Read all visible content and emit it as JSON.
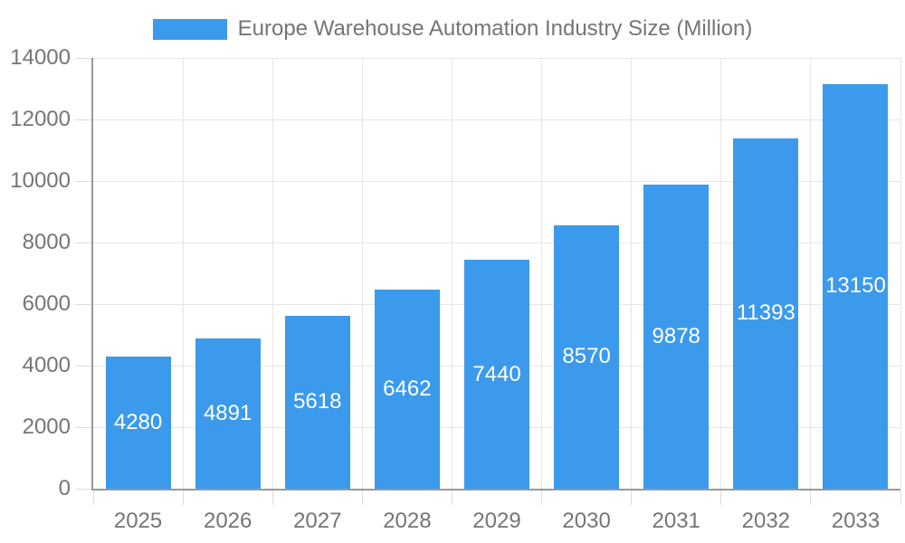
{
  "chart_data": {
    "type": "bar",
    "title": "Europe Warehouse Automation Industry Size (Million)",
    "categories": [
      "2025",
      "2026",
      "2027",
      "2028",
      "2029",
      "2030",
      "2031",
      "2032",
      "2033"
    ],
    "values": [
      4280,
      4891,
      5618,
      6462,
      7440,
      8570,
      9878,
      11393,
      13150
    ],
    "xlabel": "",
    "ylabel": "",
    "ylim": [
      0,
      14000
    ],
    "yticks": [
      0,
      2000,
      4000,
      6000,
      8000,
      10000,
      12000,
      14000
    ],
    "grid": true,
    "legend_position": "top-center",
    "value_label_position": "inside-center"
  },
  "colors": {
    "bar": "#3C9AEC",
    "axis_line": "#999999",
    "grid_line": "#e6e6e6",
    "tick_mark": "#dddddd",
    "tick_label": "#757575",
    "legend_text": "#757575",
    "value_label": "#ffffff",
    "background": "#ffffff"
  }
}
